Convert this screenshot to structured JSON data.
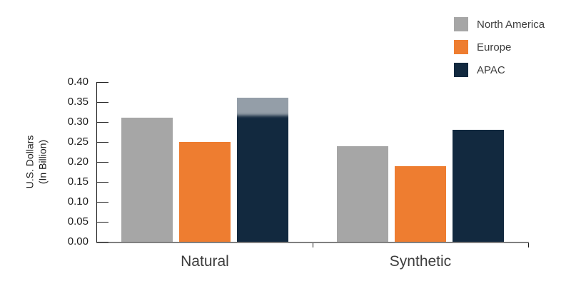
{
  "chart_data": {
    "type": "bar",
    "title": "",
    "categories": [
      "Natural",
      "Synthetic"
    ],
    "series": [
      {
        "name": "North America",
        "color": "#a6a6a6",
        "values": [
          0.31,
          0.24
        ]
      },
      {
        "name": "Europe",
        "color": "#ee7d30",
        "values": [
          0.25,
          0.19
        ]
      },
      {
        "name": "APAC",
        "color": "#12293f",
        "values": [
          0.36,
          0.28
        ]
      }
    ],
    "ylabel_line1": "U.S. Dollars",
    "ylabel_line2": "(In Billion)",
    "ylim": [
      0,
      0.4
    ],
    "yticks": [
      "0.00",
      "0.05",
      "0.10",
      "0.15",
      "0.20",
      "0.25",
      "0.30",
      "0.35",
      "0.40"
    ],
    "xlabel": "",
    "grid": false,
    "legend_position": "top-right",
    "axis_colors": {
      "spine": "#1a1a1a",
      "baseline": "#808080",
      "tick_text": "#1a1a1a",
      "category_text": "#3d3d3d"
    }
  }
}
